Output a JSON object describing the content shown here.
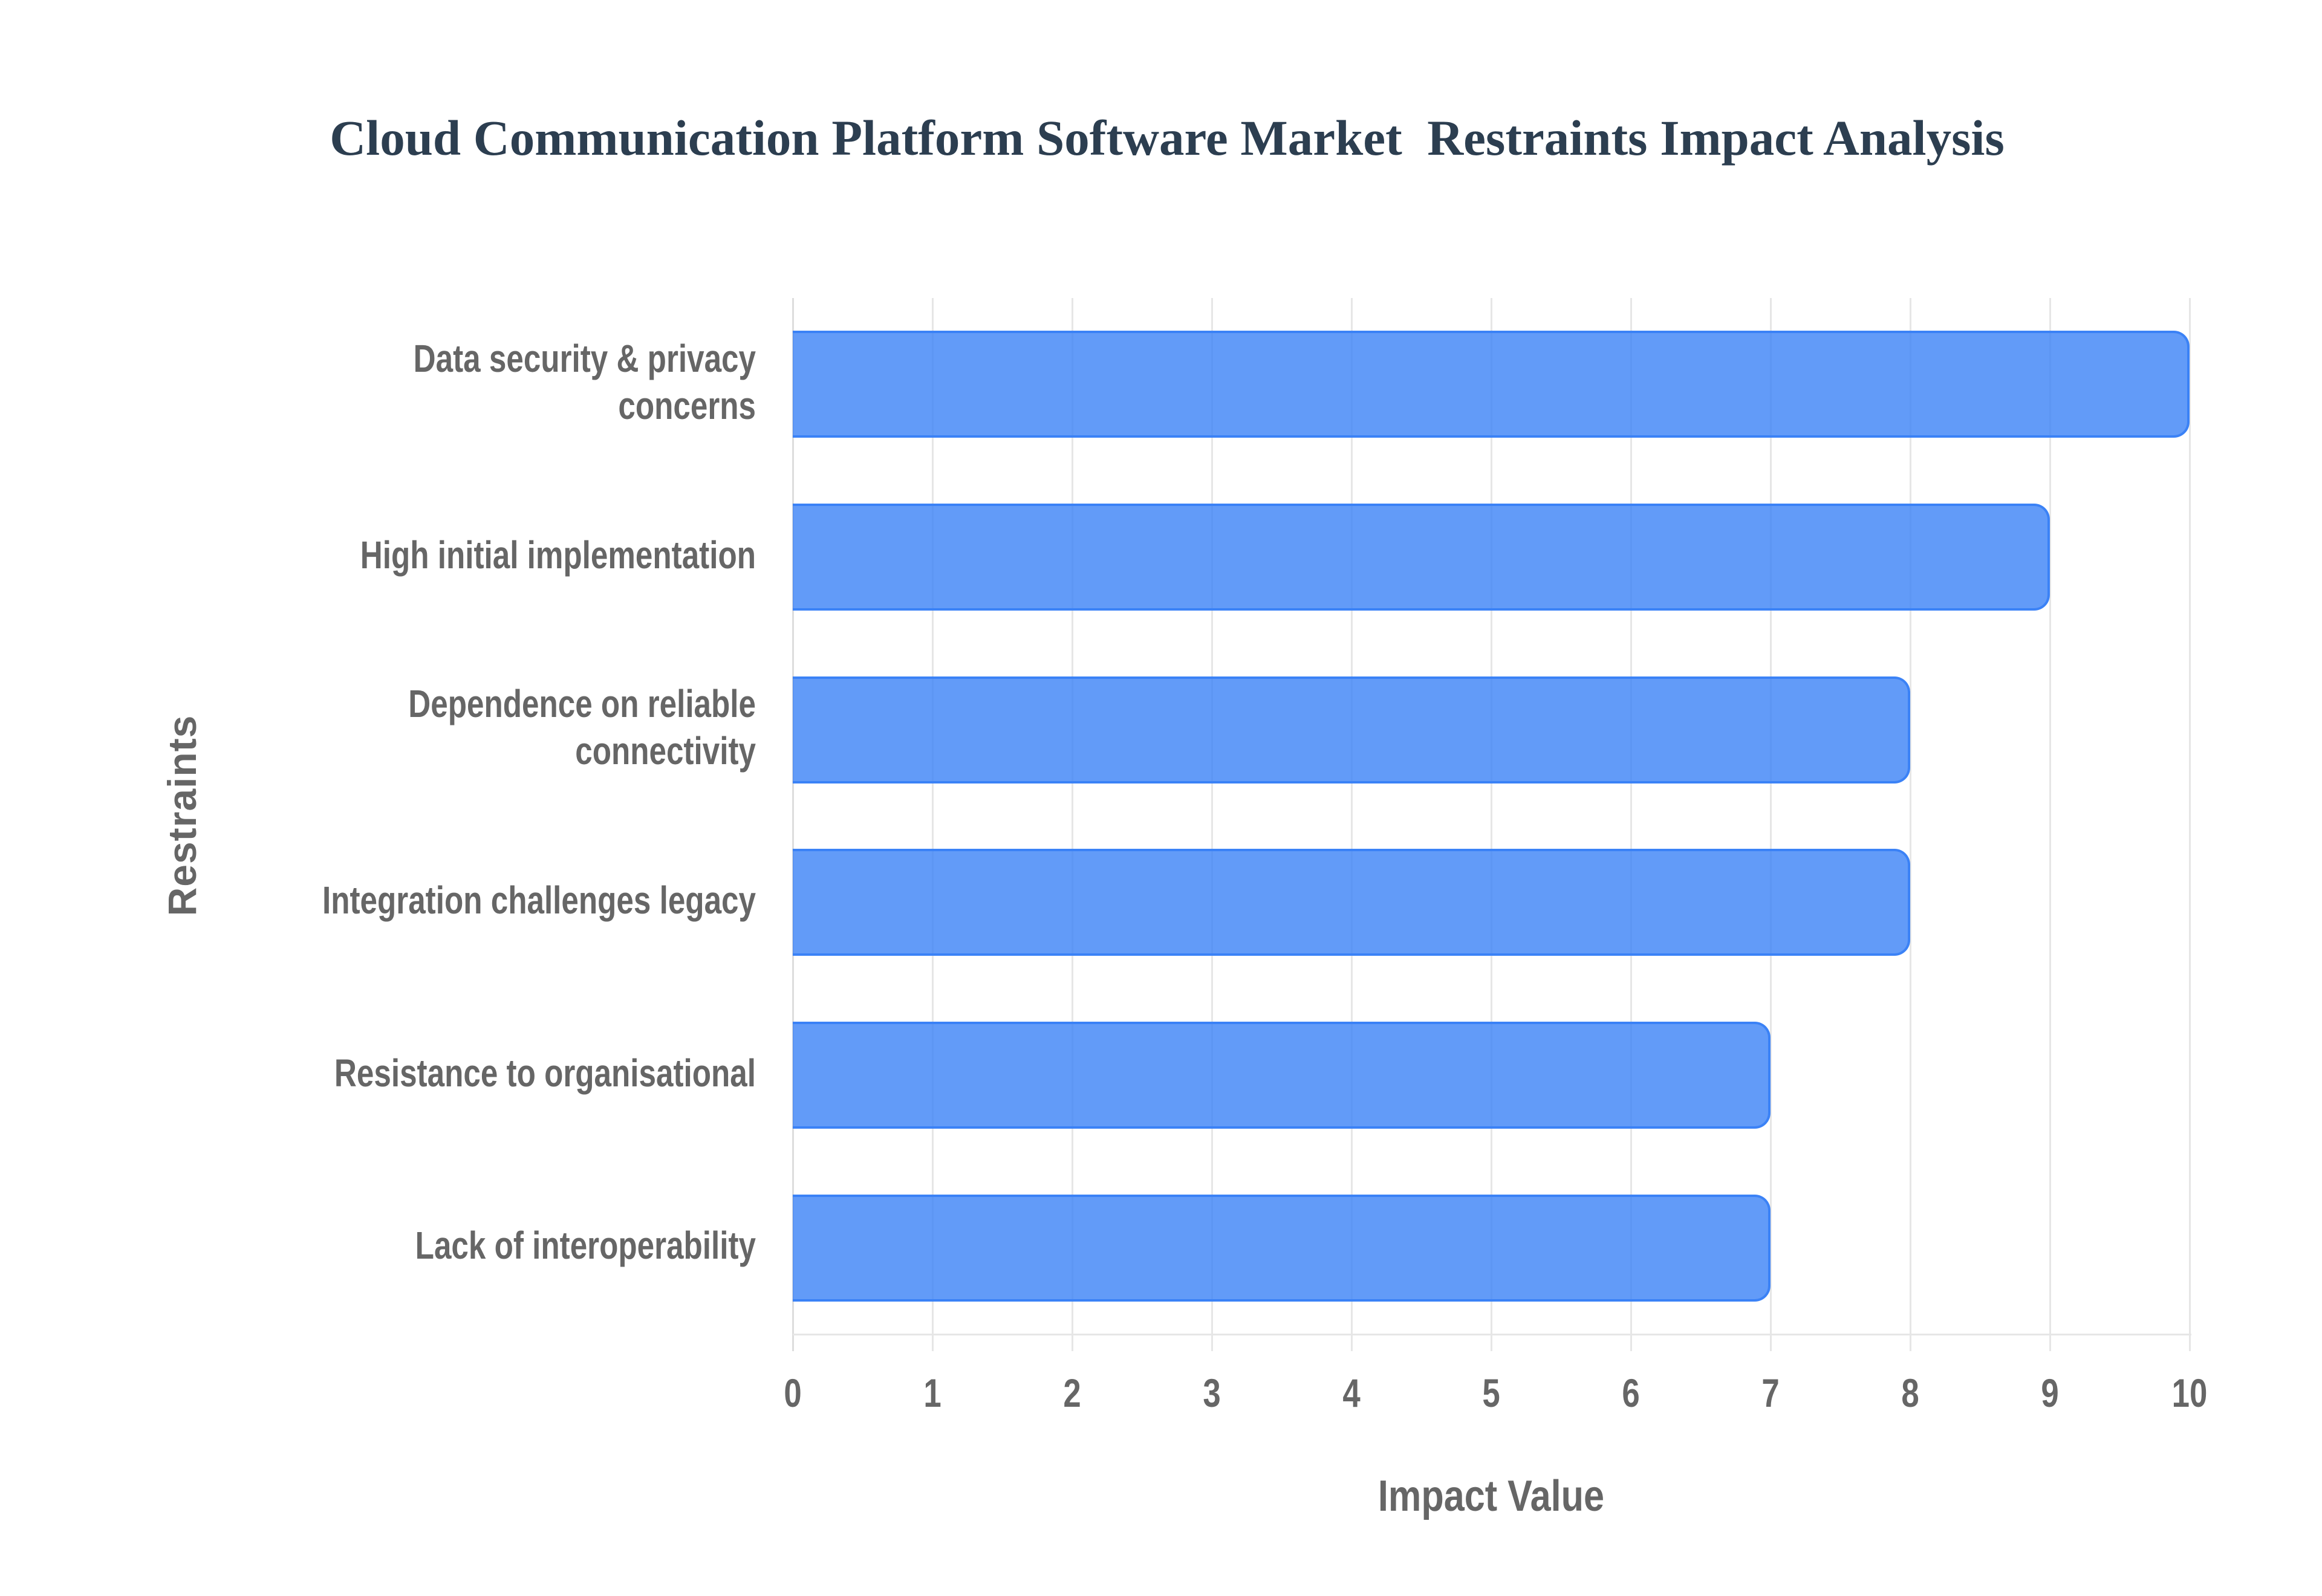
{
  "title": "Cloud Communication Platform Software Market  Restraints Impact Analysis",
  "colors": {
    "title": "#2C3E50",
    "bar_fill": "rgba(59,130,246,0.8)",
    "bar_border": "#3B82F6",
    "grid": "#E6E6E6",
    "label": "#666666"
  },
  "axes": {
    "x_title": "Impact Value",
    "y_title": "Restraints",
    "x_ticks": [
      "0",
      "1",
      "2",
      "3",
      "4",
      "5",
      "6",
      "7",
      "8",
      "9",
      "10"
    ]
  },
  "chart_data": {
    "type": "bar",
    "orientation": "horizontal",
    "title": "Cloud Communication Platform Software Market  Restraints Impact Analysis",
    "xlabel": "Impact Value",
    "ylabel": "Restraints",
    "xlim": [
      0,
      10
    ],
    "grid": true,
    "legend": null,
    "categories": [
      "Data security & privacy concerns",
      "High initial implementation",
      "Dependence on reliable connectivity",
      "Integration challenges legacy",
      "Resistance to organisational",
      "Lack of interoperability"
    ],
    "values": [
      10,
      9,
      8,
      8,
      7,
      7
    ]
  },
  "bars": [
    {
      "label_lines": [
        "Data security & privacy",
        "concerns"
      ],
      "value": 10
    },
    {
      "label_lines": [
        "High initial implementation"
      ],
      "value": 9
    },
    {
      "label_lines": [
        "Dependence on reliable",
        "connectivity"
      ],
      "value": 8
    },
    {
      "label_lines": [
        "Integration challenges legacy"
      ],
      "value": 8
    },
    {
      "label_lines": [
        "Resistance to organisational"
      ],
      "value": 7
    },
    {
      "label_lines": [
        "Lack of interoperability"
      ],
      "value": 7
    }
  ]
}
